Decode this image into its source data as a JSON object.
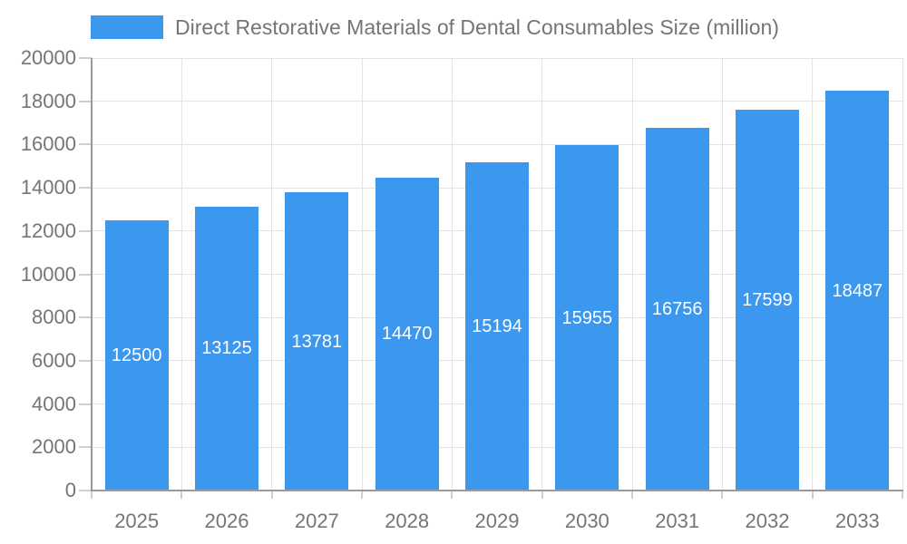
{
  "chart_data": {
    "type": "bar",
    "title": "Direct Restorative Materials of Dental Consumables Size (million)",
    "legend_entries": [
      "Direct Restorative Materials of Dental Consumables Size (million)"
    ],
    "legend_position": "top-left",
    "categories": [
      "2025",
      "2026",
      "2027",
      "2028",
      "2029",
      "2030",
      "2031",
      "2032",
      "2033"
    ],
    "series": [
      {
        "name": "Direct Restorative Materials of Dental Consumables Size (million)",
        "values": [
          12500,
          13125,
          13781,
          14470,
          15194,
          15955,
          16756,
          17599,
          18487
        ]
      }
    ],
    "data_labels_shown": true,
    "xlabel": "",
    "ylabel": "",
    "ylim": [
      0,
      20000
    ],
    "ytick_step": 2000,
    "y_ticks": [
      0,
      2000,
      4000,
      6000,
      8000,
      10000,
      12000,
      14000,
      16000,
      18000,
      20000
    ],
    "grid": true,
    "colors": {
      "bar": "#3B98EE",
      "bar_label_text": "#FFFFFF",
      "axis_line": "#9A9A9A",
      "grid_line": "#E4E4E4",
      "tick_mark": "#CFCFCF",
      "axis_text": "#757575",
      "background": "#FFFFFF"
    }
  }
}
